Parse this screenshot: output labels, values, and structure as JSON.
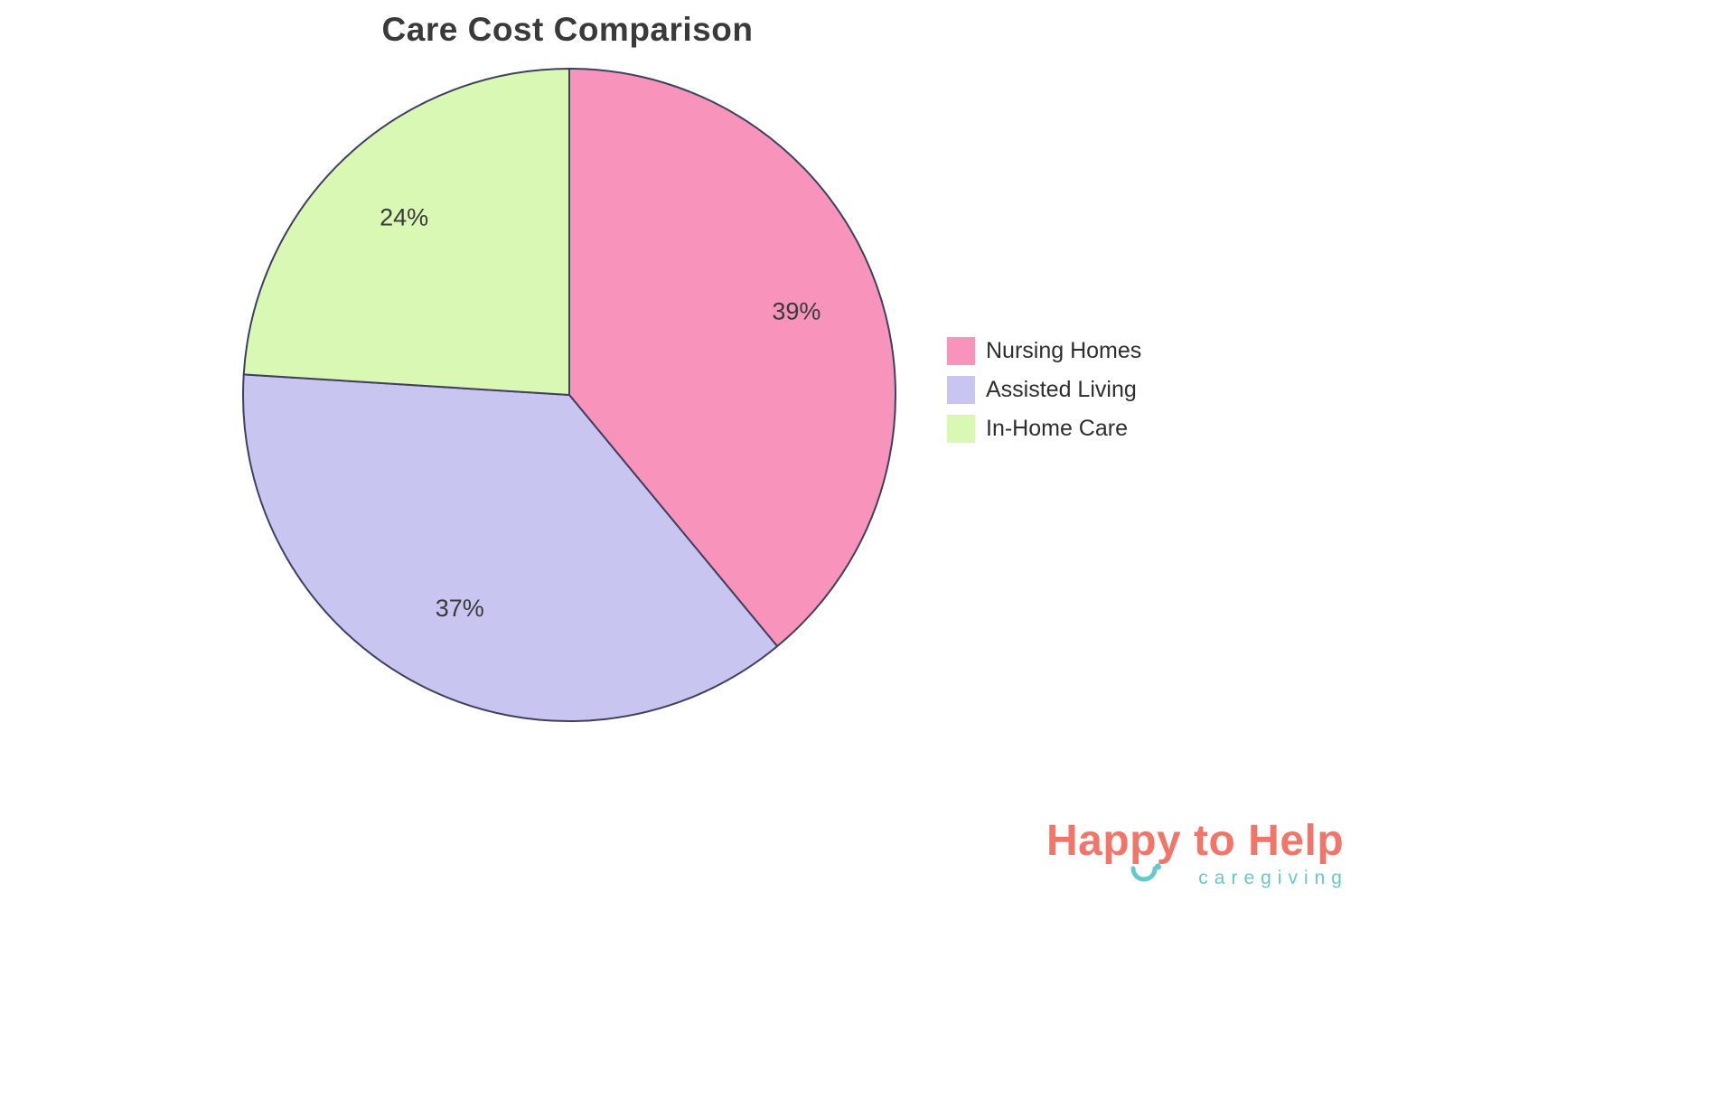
{
  "chart_data": {
    "type": "pie",
    "title": "Care Cost Comparison",
    "categories": [
      "Nursing Homes",
      "Assisted Living",
      "In-Home Care"
    ],
    "values": [
      39,
      37,
      24
    ],
    "labels": [
      "39%",
      "37%",
      "24%"
    ],
    "colors": [
      "#F893BB",
      "#C9C5F1",
      "#D9F8B4"
    ],
    "stroke_color": "#3F3F5E",
    "start_angle_deg": -90,
    "direction": "clockwise",
    "legend_position": "right",
    "label_color": "#3A3A3A"
  },
  "branding": {
    "name": "Happy to Help",
    "tagline": "caregiving",
    "name_color": "#F2756A",
    "tagline_color": "#64C8CF"
  }
}
